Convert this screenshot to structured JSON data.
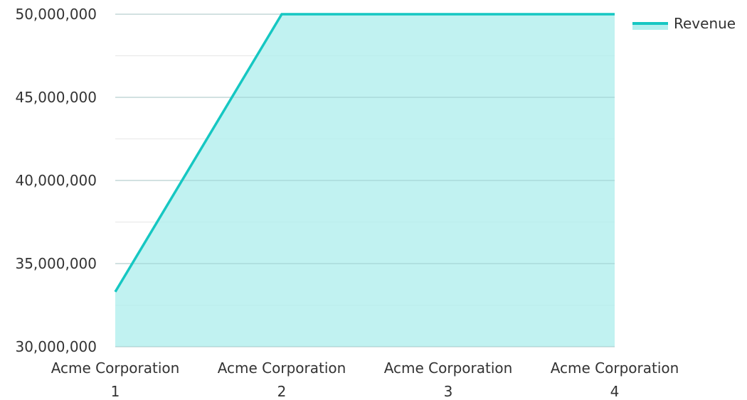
{
  "chart_data": {
    "type": "area",
    "categories": [
      [
        "Acme Corporation",
        "1"
      ],
      [
        "Acme Corporation",
        "2"
      ],
      [
        "Acme Corporation",
        "3"
      ],
      [
        "Acme Corporation",
        "4"
      ]
    ],
    "series": [
      {
        "name": "Revenue",
        "values": [
          33300000,
          50000000,
          50000000,
          50000000
        ],
        "color": "#16c7c2",
        "fill": "#b2efee"
      }
    ],
    "ylim": [
      30000000,
      50000000
    ],
    "yticks": [
      30000000,
      35000000,
      40000000,
      45000000,
      50000000
    ],
    "ytick_labels": [
      "30,000,000",
      "35,000,000",
      "40,000,000",
      "45,000,000",
      "50,000,000"
    ],
    "minor_grid": true,
    "grid": true,
    "legend": "top-right"
  }
}
